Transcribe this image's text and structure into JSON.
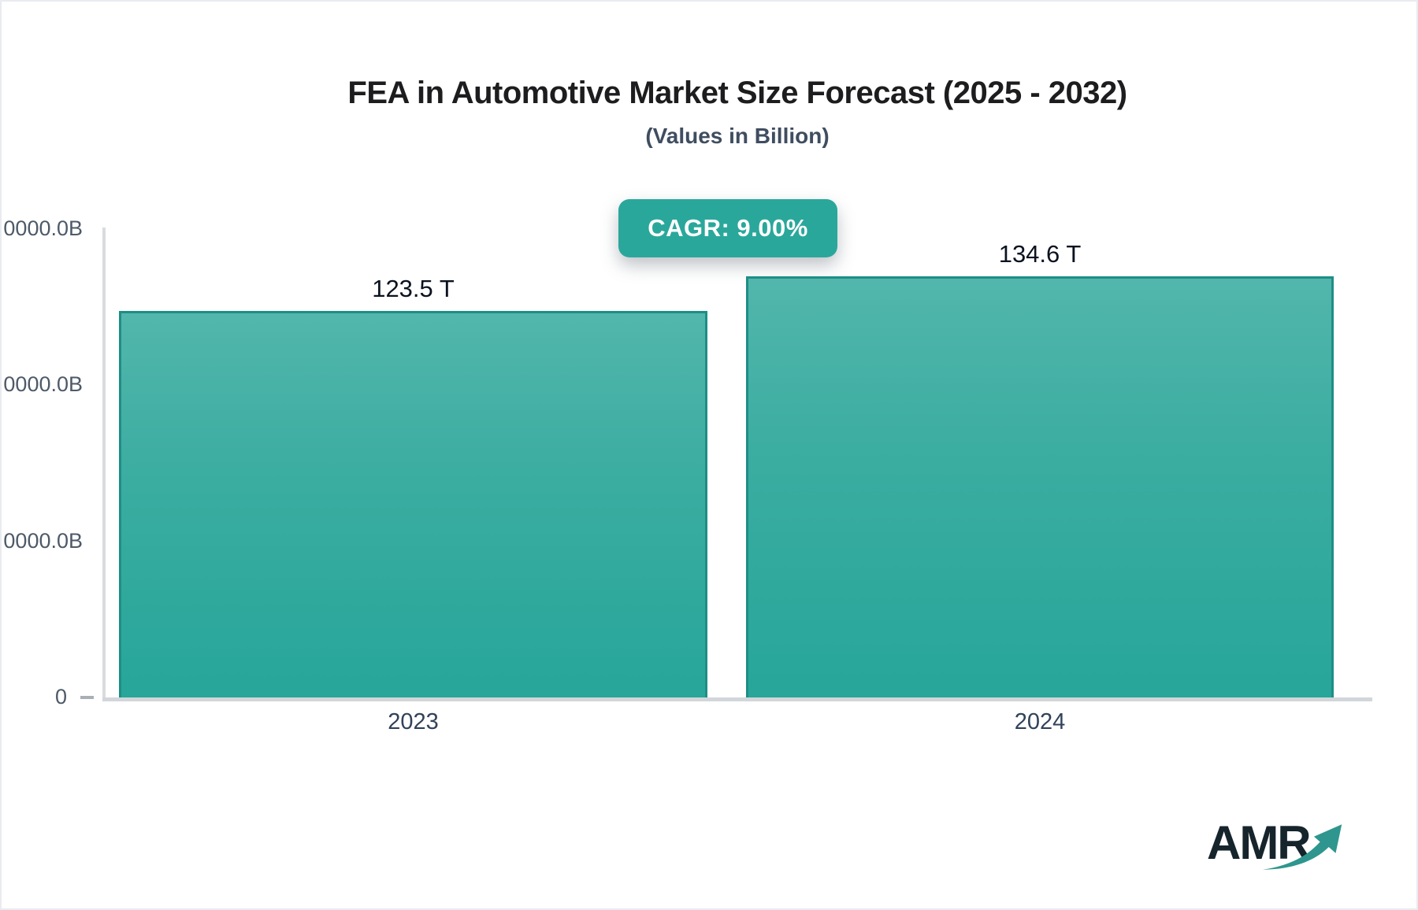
{
  "header": {
    "title": "FEA in Automotive Market Size Forecast (2025 - 2032)",
    "subtitle": "(Values in Billion)",
    "cagr_badge_label": "CAGR: 9.00%"
  },
  "chart_data": {
    "type": "bar",
    "title": "FEA in Automotive Market Size Forecast (2025 - 2032)",
    "subtitle": "(Values in Billion)",
    "categories": [
      "2023",
      "2024"
    ],
    "values_billion": [
      123500,
      134600
    ],
    "value_labels": [
      "123.5 T",
      "134.6 T"
    ],
    "cagr_percent": 9.0,
    "ylim_billion": [
      0,
      150000
    ],
    "ytick_labels_visible": [
      "0000.0B",
      "0000.0B",
      "0000.0B",
      "0"
    ],
    "xlabel": "",
    "ylabel": "",
    "grid": false,
    "legend": false,
    "bar_fill_top": "#52b6ac",
    "bar_fill_bottom": "#27a69a",
    "bar_stroke": "#1e8e85"
  },
  "colors": {
    "accent_teal": "#2aa79b",
    "axis_line": "#d6dade",
    "title_text": "#1d1d1f",
    "subtitle_text": "#3f4d60",
    "tick_text": "#4e5a68",
    "logo_text": "#16242c",
    "logo_arrow": "#2e968e"
  },
  "logo": {
    "text": "AMR",
    "icon": "trend-up-arrow-icon"
  }
}
